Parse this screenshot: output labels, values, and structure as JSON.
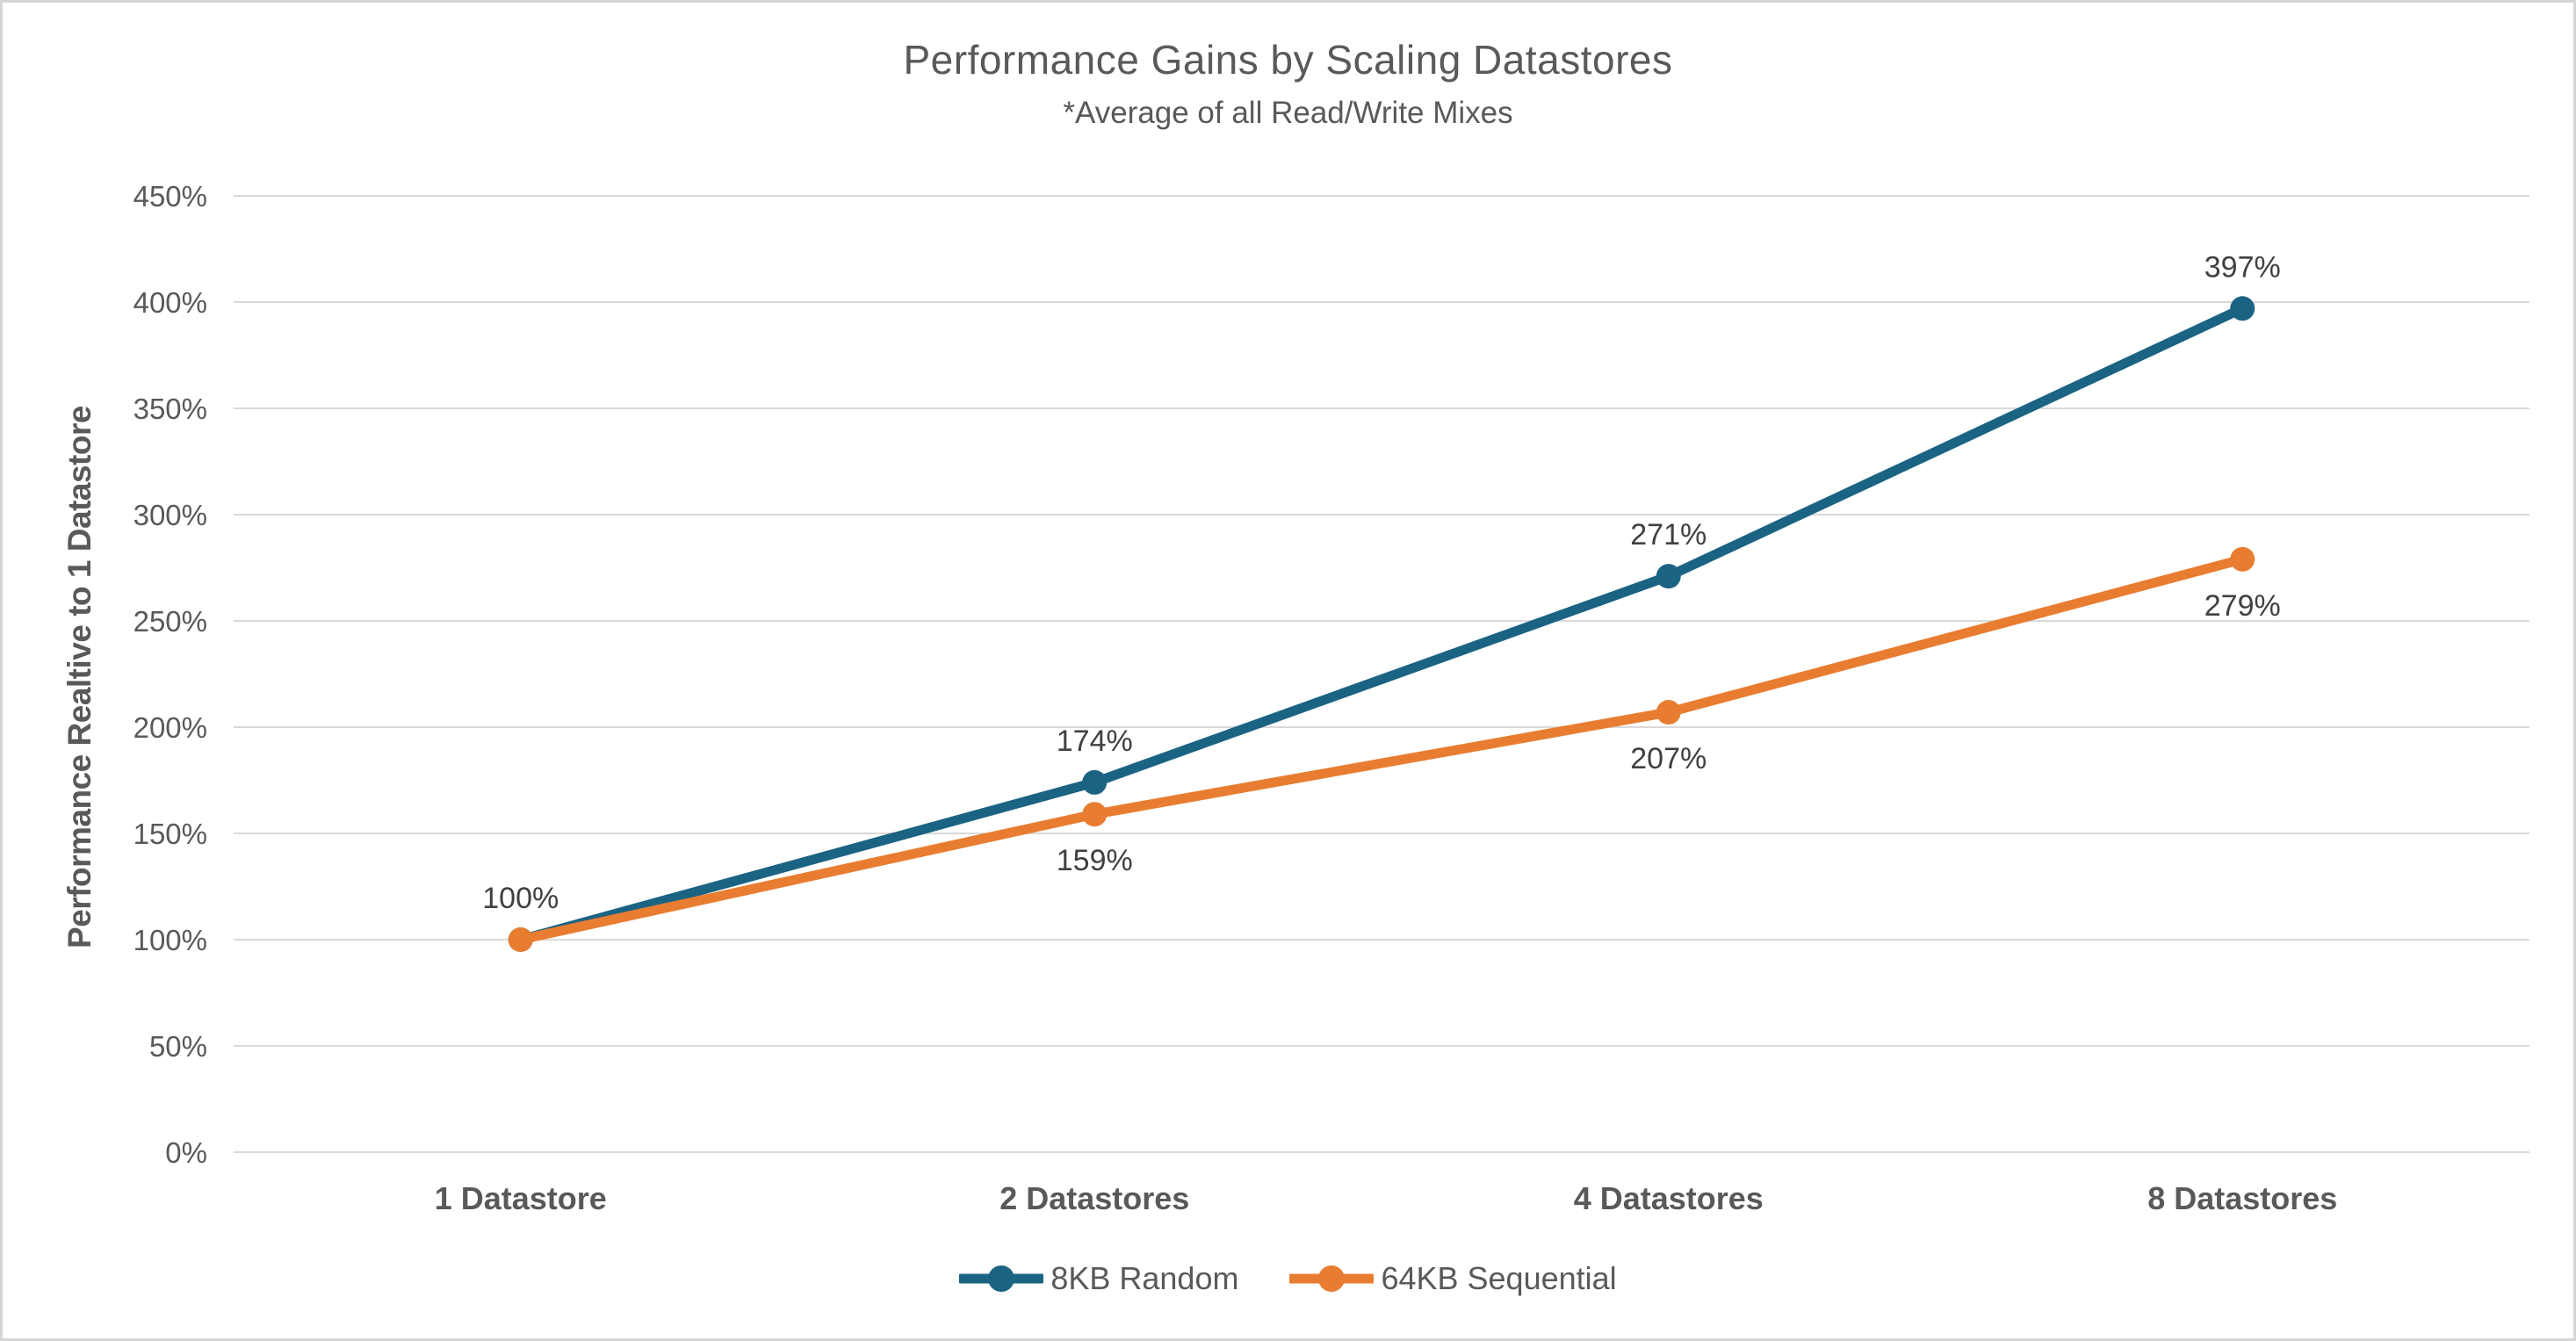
{
  "frame": {
    "background": "#ffffff",
    "border_color": "#d6d6d6"
  },
  "chart_data": {
    "type": "line",
    "title": "Performance Gains by Scaling Datastores",
    "subtitle": "*Average of all Read/Write Mixes",
    "ylabel": "Performance Realtive to 1 Datastore",
    "xlabel": "",
    "categories": [
      "1 Datastore",
      "2 Datastores",
      "4 Datastores",
      "8 Datastores"
    ],
    "series": [
      {
        "name": "8KB Random",
        "color": "#1b6383",
        "values": [
          100,
          174,
          271,
          397
        ],
        "data_labels": [
          "100%",
          "174%",
          "271%",
          "397%"
        ],
        "label_position": "above"
      },
      {
        "name": "64KB Sequential",
        "color": "#e87d31",
        "values": [
          100,
          159,
          207,
          279
        ],
        "data_labels": [
          null,
          "159%",
          "207%",
          "279%"
        ],
        "label_position": "below"
      }
    ],
    "y_ticks": [
      "0%",
      "50%",
      "100%",
      "150%",
      "200%",
      "250%",
      "300%",
      "350%",
      "400%",
      "450%"
    ],
    "ylim": [
      0,
      450
    ],
    "y_tick_step": 50,
    "grid": true,
    "legend_position": "bottom",
    "colors": {
      "text": "#595959",
      "data_label": "#404040",
      "gridline": "#d9d9d9"
    }
  }
}
